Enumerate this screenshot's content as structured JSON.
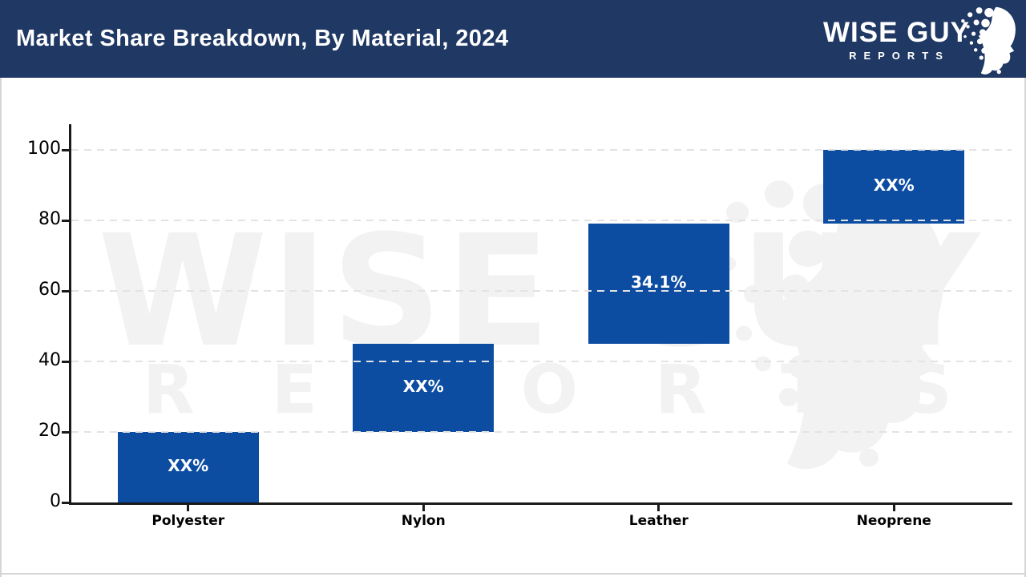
{
  "header": {
    "title": "Market Share Breakdown, By Material, 2024",
    "logo": {
      "line1": "WISE GUY",
      "line2": "REPORTS"
    }
  },
  "watermark": {
    "line1": "WISE GUY",
    "line2": "REPORTS"
  },
  "chart_data": {
    "type": "bar",
    "subtype": "floating-waterfall",
    "title": "Market Share Breakdown, By Material, 2024",
    "categories": [
      "Polyester",
      "Nylon",
      "Leather",
      "Neoprene"
    ],
    "bars": [
      {
        "category": "Polyester",
        "start": 0,
        "end": 20,
        "value": 20,
        "label": "XX%"
      },
      {
        "category": "Nylon",
        "start": 20,
        "end": 45,
        "value": 25,
        "label": "XX%"
      },
      {
        "category": "Leather",
        "start": 45,
        "end": 79.1,
        "value": 34.1,
        "label": "34.1%"
      },
      {
        "category": "Neoprene",
        "start": 79.1,
        "end": 100,
        "value": 20.9,
        "label": "XX%"
      }
    ],
    "ylim": [
      0,
      100
    ],
    "yticks": [
      0,
      20,
      40,
      60,
      80,
      100
    ],
    "xlabel": "",
    "ylabel": "",
    "grid": "horizontal-dashed",
    "legend": "none",
    "bar_color": "#0c4da2",
    "bar_label_color": "#ffffff"
  },
  "colors": {
    "header_bg": "#203864",
    "bar": "#0c4da2",
    "grid": "#e3e3e3",
    "axis": "#1a1a1a",
    "watermark": "#f2f2f2",
    "frame": "#d6d6d6"
  }
}
